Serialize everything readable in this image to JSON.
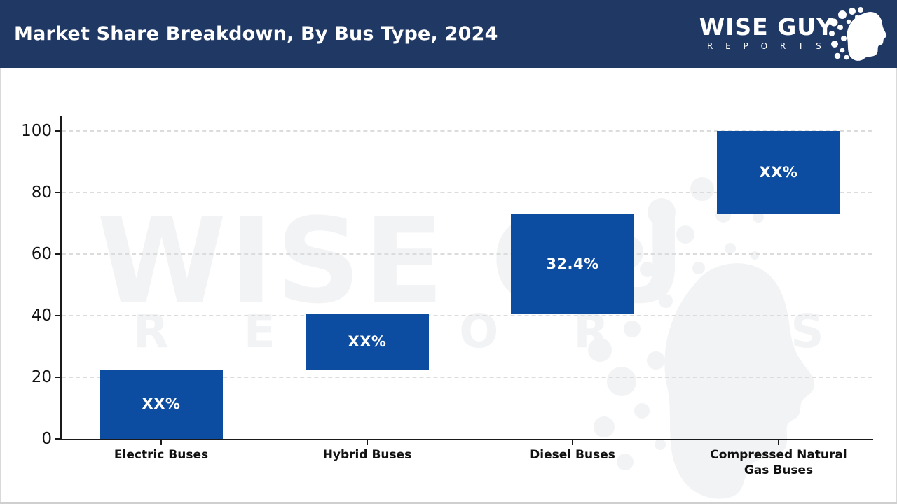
{
  "header": {
    "title": "Market Share Breakdown, By Bus Type, 2024",
    "bg_color": "#1F3864",
    "logo": {
      "name": "WISE GUY",
      "sub": "R E P O R T S",
      "face_icon": "dotted-face-profile-icon"
    }
  },
  "watermark": {
    "line1": "WISE GU",
    "line2": "R E P O R T S",
    "face_icon": "dotted-face-profile-watermark"
  },
  "chart_data": {
    "type": "bar",
    "variant": "waterfall",
    "title": "Market Share Breakdown, By Bus Type, 2024",
    "xlabel": "",
    "ylabel": "",
    "ylim": [
      0,
      100
    ],
    "yticks": [
      0,
      20,
      40,
      60,
      80,
      100
    ],
    "grid": "horizontal-dashed",
    "legend": "none",
    "bar_color": "#0D4DA1",
    "label_color": "#FFFFFF",
    "bars": [
      {
        "category_lines": [
          "Electric Buses"
        ],
        "start": 0,
        "end": 22.6,
        "label": "XX%"
      },
      {
        "category_lines": [
          "Hybrid Buses"
        ],
        "start": 22.6,
        "end": 40.7,
        "label": "XX%"
      },
      {
        "category_lines": [
          "Diesel Buses"
        ],
        "start": 40.7,
        "end": 73.1,
        "label": "32.4%"
      },
      {
        "category_lines": [
          "Compressed Natural",
          "Gas Buses"
        ],
        "start": 73.1,
        "end": 100,
        "label": "XX%"
      }
    ]
  }
}
